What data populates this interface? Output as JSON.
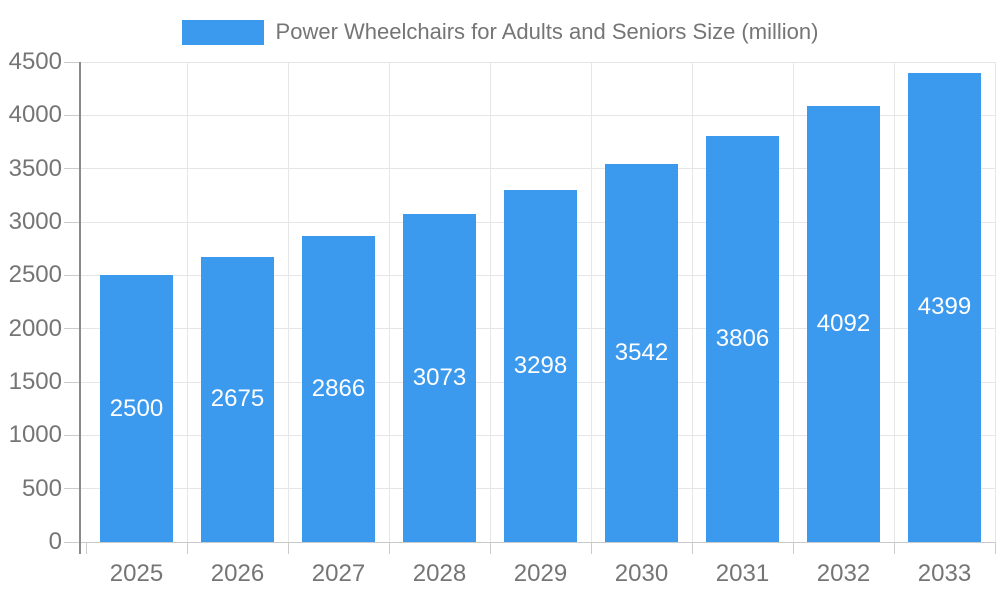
{
  "chart_data": {
    "type": "bar",
    "title": "Power Wheelchairs for Adults and Seniors Size (million)",
    "categories": [
      "2025",
      "2026",
      "2027",
      "2028",
      "2029",
      "2030",
      "2031",
      "2032",
      "2033"
    ],
    "series": [
      {
        "name": "Power Wheelchairs for Adults and Seniors Size (million)",
        "values": [
          2500,
          2675,
          2866,
          3073,
          3298,
          3542,
          3806,
          4092,
          4399
        ]
      }
    ],
    "bar_value_labels": [
      "2500",
      "2675",
      "2866",
      "3073",
      "3298",
      "3542",
      "3806",
      "4092",
      "4399"
    ],
    "xlabel": "",
    "ylabel": "",
    "ylim": [
      0,
      4500
    ],
    "yticks": [
      0,
      500,
      1000,
      1500,
      2000,
      2500,
      3000,
      3500,
      4000,
      4500
    ],
    "grid": true,
    "legend_position": "top",
    "colors": {
      "bar": "#3b99ee",
      "bar_label": "#ffffff",
      "axis_text": "#757575",
      "gridline": "#e6e6e6",
      "baseline": "#c9c9c9",
      "tick": "#cccccc",
      "axis_line": "#8a8a8a",
      "background": "#ffffff"
    }
  }
}
